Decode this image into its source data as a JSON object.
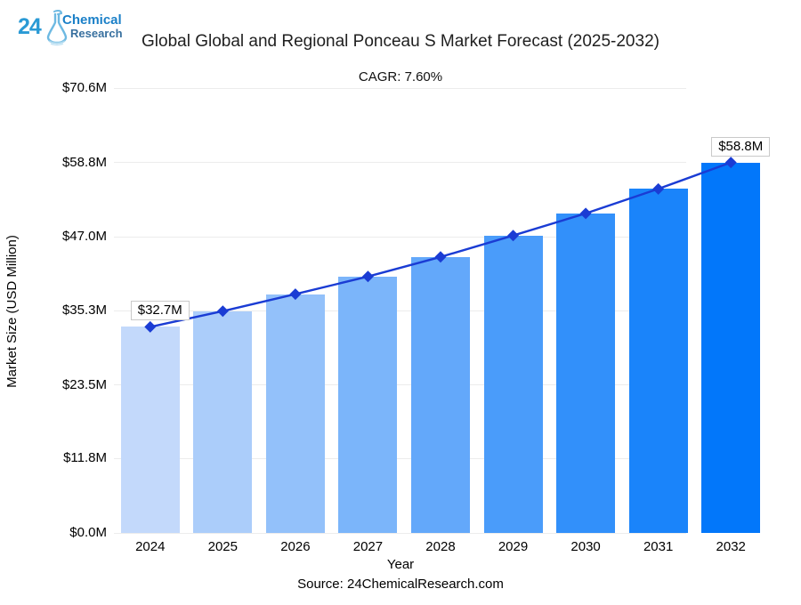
{
  "logo": {
    "number": "24",
    "line1": "Chemical",
    "line2": "Research"
  },
  "header": {
    "title": "Global Global and Regional Ponceau S Market Forecast (2025-2032)",
    "subtitle": "CAGR: 7.60%"
  },
  "chart_data": {
    "type": "bar+line",
    "title": "Global Global and Regional Ponceau S Market Forecast (2025-2032)",
    "subtitle": "CAGR: 7.60%",
    "categories": [
      "2024",
      "2025",
      "2026",
      "2027",
      "2028",
      "2029",
      "2030",
      "2031",
      "2032"
    ],
    "values": [
      32.7,
      35.2,
      37.9,
      40.7,
      43.8,
      47.2,
      50.7,
      54.6,
      58.8
    ],
    "xlabel": "Year",
    "ylabel": "Market Size (USD Million)",
    "ylim": [
      0,
      70.6
    ],
    "ytick_values": [
      0,
      11.8,
      23.5,
      35.3,
      47.0,
      58.8,
      70.6
    ],
    "ytick_labels": [
      "$0.0M",
      "$11.8M",
      "$23.5M",
      "$35.3M",
      "$47.0M",
      "$58.8M",
      "$70.6M"
    ],
    "grid": "horizontal",
    "legend_position": "none",
    "bar_colors": [
      "#c3d9fb",
      "#abcdfa",
      "#93c1fa",
      "#7bb5fa",
      "#63a8fa",
      "#4a9cfa",
      "#3290fa",
      "#1a84fa",
      "#0277fa"
    ],
    "line_color": "#1a3cd4",
    "marker_shape": "diamond",
    "gridline_color": "#ececec",
    "point_labels": [
      {
        "index": 0,
        "label": "$32.7M"
      },
      {
        "index": 8,
        "label": "$58.8M"
      }
    ]
  },
  "footer": {
    "source": "Source: 24ChemicalResearch.com"
  }
}
